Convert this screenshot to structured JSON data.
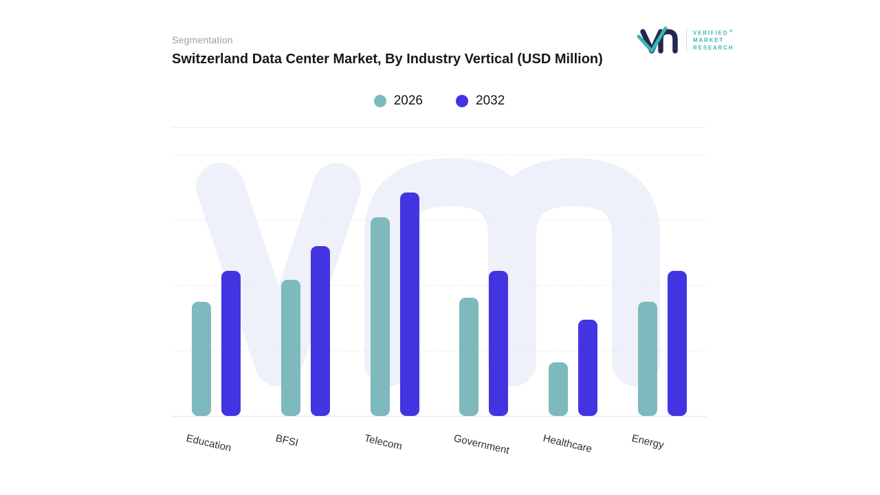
{
  "header": {
    "eyebrow": "Segmentation",
    "title": "Switzerland Data Center Market, By Industry Vertical (USD Million)"
  },
  "logo": {
    "lines": [
      "VERIFIED",
      "MARKET",
      "RESEARCH"
    ],
    "registered_mark": "®",
    "accent_color": "#3ab6b2",
    "navy_color": "#232850"
  },
  "chart_data": {
    "type": "bar",
    "title": "Switzerland Data Center Market, By Industry Vertical (USD Million)",
    "categories": [
      "Education",
      "BFSI",
      "Telecom",
      "Government",
      "Healthcare",
      "Energy"
    ],
    "series": [
      {
        "name": "2026",
        "color": "#7db9bd",
        "values": [
          51,
          61,
          89,
          53,
          24,
          51
        ]
      },
      {
        "name": "2032",
        "color": "#4334e1",
        "values": [
          65,
          76,
          100,
          65,
          43,
          65
        ]
      }
    ],
    "ylabel": "USD Million",
    "ylim": [
      0,
      100
    ],
    "grid": "horizontal-dashed",
    "legend_position": "top-center",
    "note": "No numeric axis labels shown; values are relative estimates read from bar heights."
  }
}
